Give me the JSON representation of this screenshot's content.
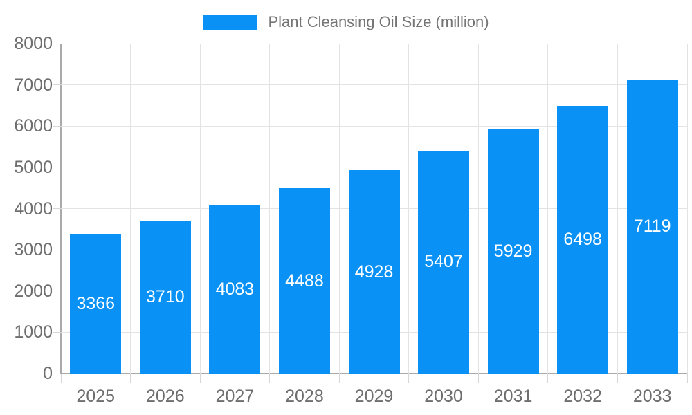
{
  "legend": {
    "label": "Plant Cleansing Oil Size (million)"
  },
  "colors": {
    "bar": "#0991f5",
    "value_label": "#ffffff",
    "axis_text": "#6e6e6e",
    "legend_text": "#757575",
    "gridline": "#e3e3e3",
    "axis_line": "#aaaaaa",
    "tick": "#d6d6d6",
    "background": "#ffffff"
  },
  "chart_data": {
    "type": "bar",
    "title": "Plant Cleansing Oil Size (million)",
    "categories": [
      "2025",
      "2026",
      "2027",
      "2028",
      "2029",
      "2030",
      "2031",
      "2032",
      "2033"
    ],
    "values": [
      3366,
      3710,
      4083,
      4488,
      4928,
      5407,
      5929,
      6498,
      7119
    ],
    "xlabel": "",
    "ylabel": "",
    "ylim": [
      0,
      8000
    ],
    "ytick_step": 1000,
    "yticks": [
      0,
      1000,
      2000,
      3000,
      4000,
      5000,
      6000,
      7000,
      8000
    ],
    "grid": true,
    "legend_position": "top",
    "value_labels": "inside-center"
  }
}
